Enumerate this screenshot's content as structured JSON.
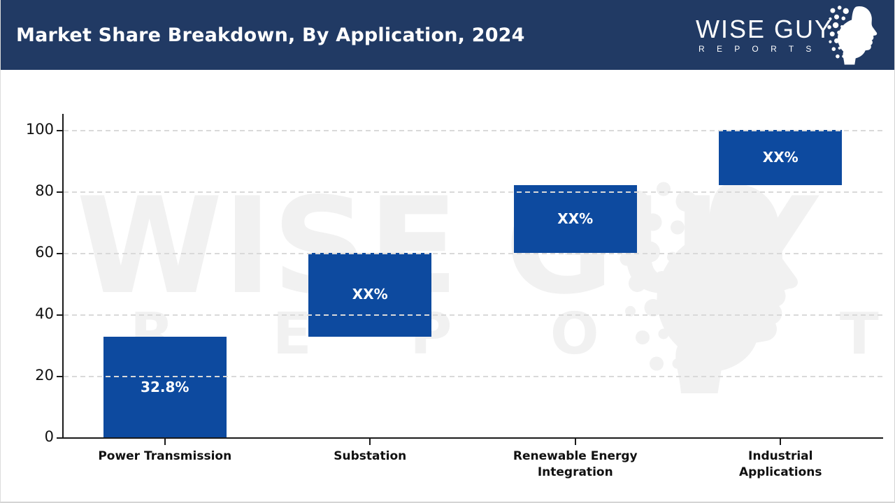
{
  "header": {
    "title": "Market Share Breakdown, By Application, 2024",
    "brand": {
      "name_line1": "WISE GUY",
      "name_line2": "R E P O R T S"
    }
  },
  "watermark": {
    "big_text": "WISE GUY",
    "small_text": "R E P O R T S"
  },
  "chart_data": {
    "type": "bar",
    "variant": "waterfall",
    "title": "Market Share Breakdown, By Application, 2024",
    "categories": [
      "Power Transmission",
      "Substation",
      "Renewable Energy\nIntegration",
      "Industrial\nApplications"
    ],
    "segments": [
      {
        "category": "Power Transmission",
        "start": 0,
        "end": 32.8,
        "label": "32.8%"
      },
      {
        "category": "Substation",
        "start": 32.8,
        "end": 60,
        "label": "XX%"
      },
      {
        "category": "Renewable Energy Integration",
        "start": 60,
        "end": 82,
        "label": "XX%"
      },
      {
        "category": "Industrial Applications",
        "start": 82,
        "end": 100,
        "label": "XX%"
      }
    ],
    "xlabel": "",
    "ylabel": "",
    "ylim": [
      0,
      105
    ],
    "yticks": [
      0,
      20,
      40,
      60,
      80,
      100
    ],
    "grid": {
      "horizontal": true,
      "style": "dashed"
    },
    "legend": "none"
  },
  "colors": {
    "header_bg": "#213a64",
    "bar": "#0d4a9f",
    "bar_label": "#ffffff",
    "axis": "#1a1a1a",
    "grid": "#d9d9d9",
    "tick_label": "#111111",
    "watermark": "#f1f1f1",
    "page_bg": "#ffffff"
  }
}
